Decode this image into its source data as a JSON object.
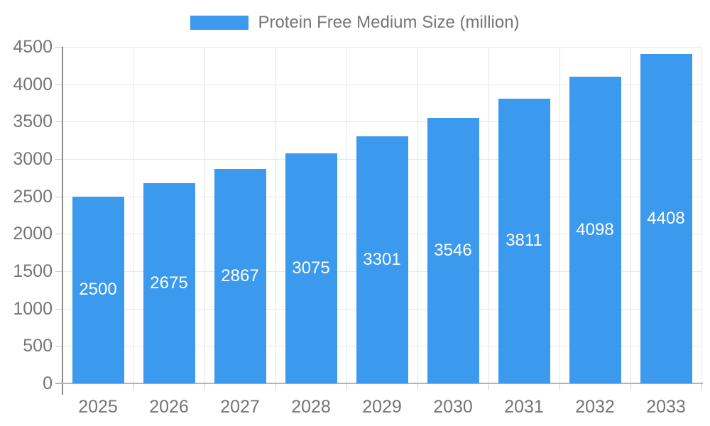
{
  "chart_data": {
    "type": "bar",
    "title": "",
    "legend_label": "Protein Free Medium Size (million)",
    "legend_position": "top",
    "categories": [
      "2025",
      "2026",
      "2027",
      "2028",
      "2029",
      "2030",
      "2031",
      "2032",
      "2033"
    ],
    "values": [
      2500,
      2675,
      2867,
      3075,
      3301,
      3546,
      3811,
      4098,
      4408
    ],
    "xlabel": "",
    "ylabel": "",
    "ylim": [
      0,
      4500
    ],
    "ytick_interval": 500,
    "yticks": [
      0,
      500,
      1000,
      1500,
      2000,
      2500,
      3000,
      3500,
      4000,
      4500
    ],
    "grid": true,
    "colors": {
      "bar": "#3B99EE",
      "axis_text": "#757575",
      "legend_text": "#757575",
      "gridline": "#e7e7e7",
      "axis_line": "#8a8a8a",
      "zero_line": "#b3b3b3",
      "tick": "#cccccc",
      "value_label": "#ffffff",
      "background": "#ffffff"
    }
  }
}
